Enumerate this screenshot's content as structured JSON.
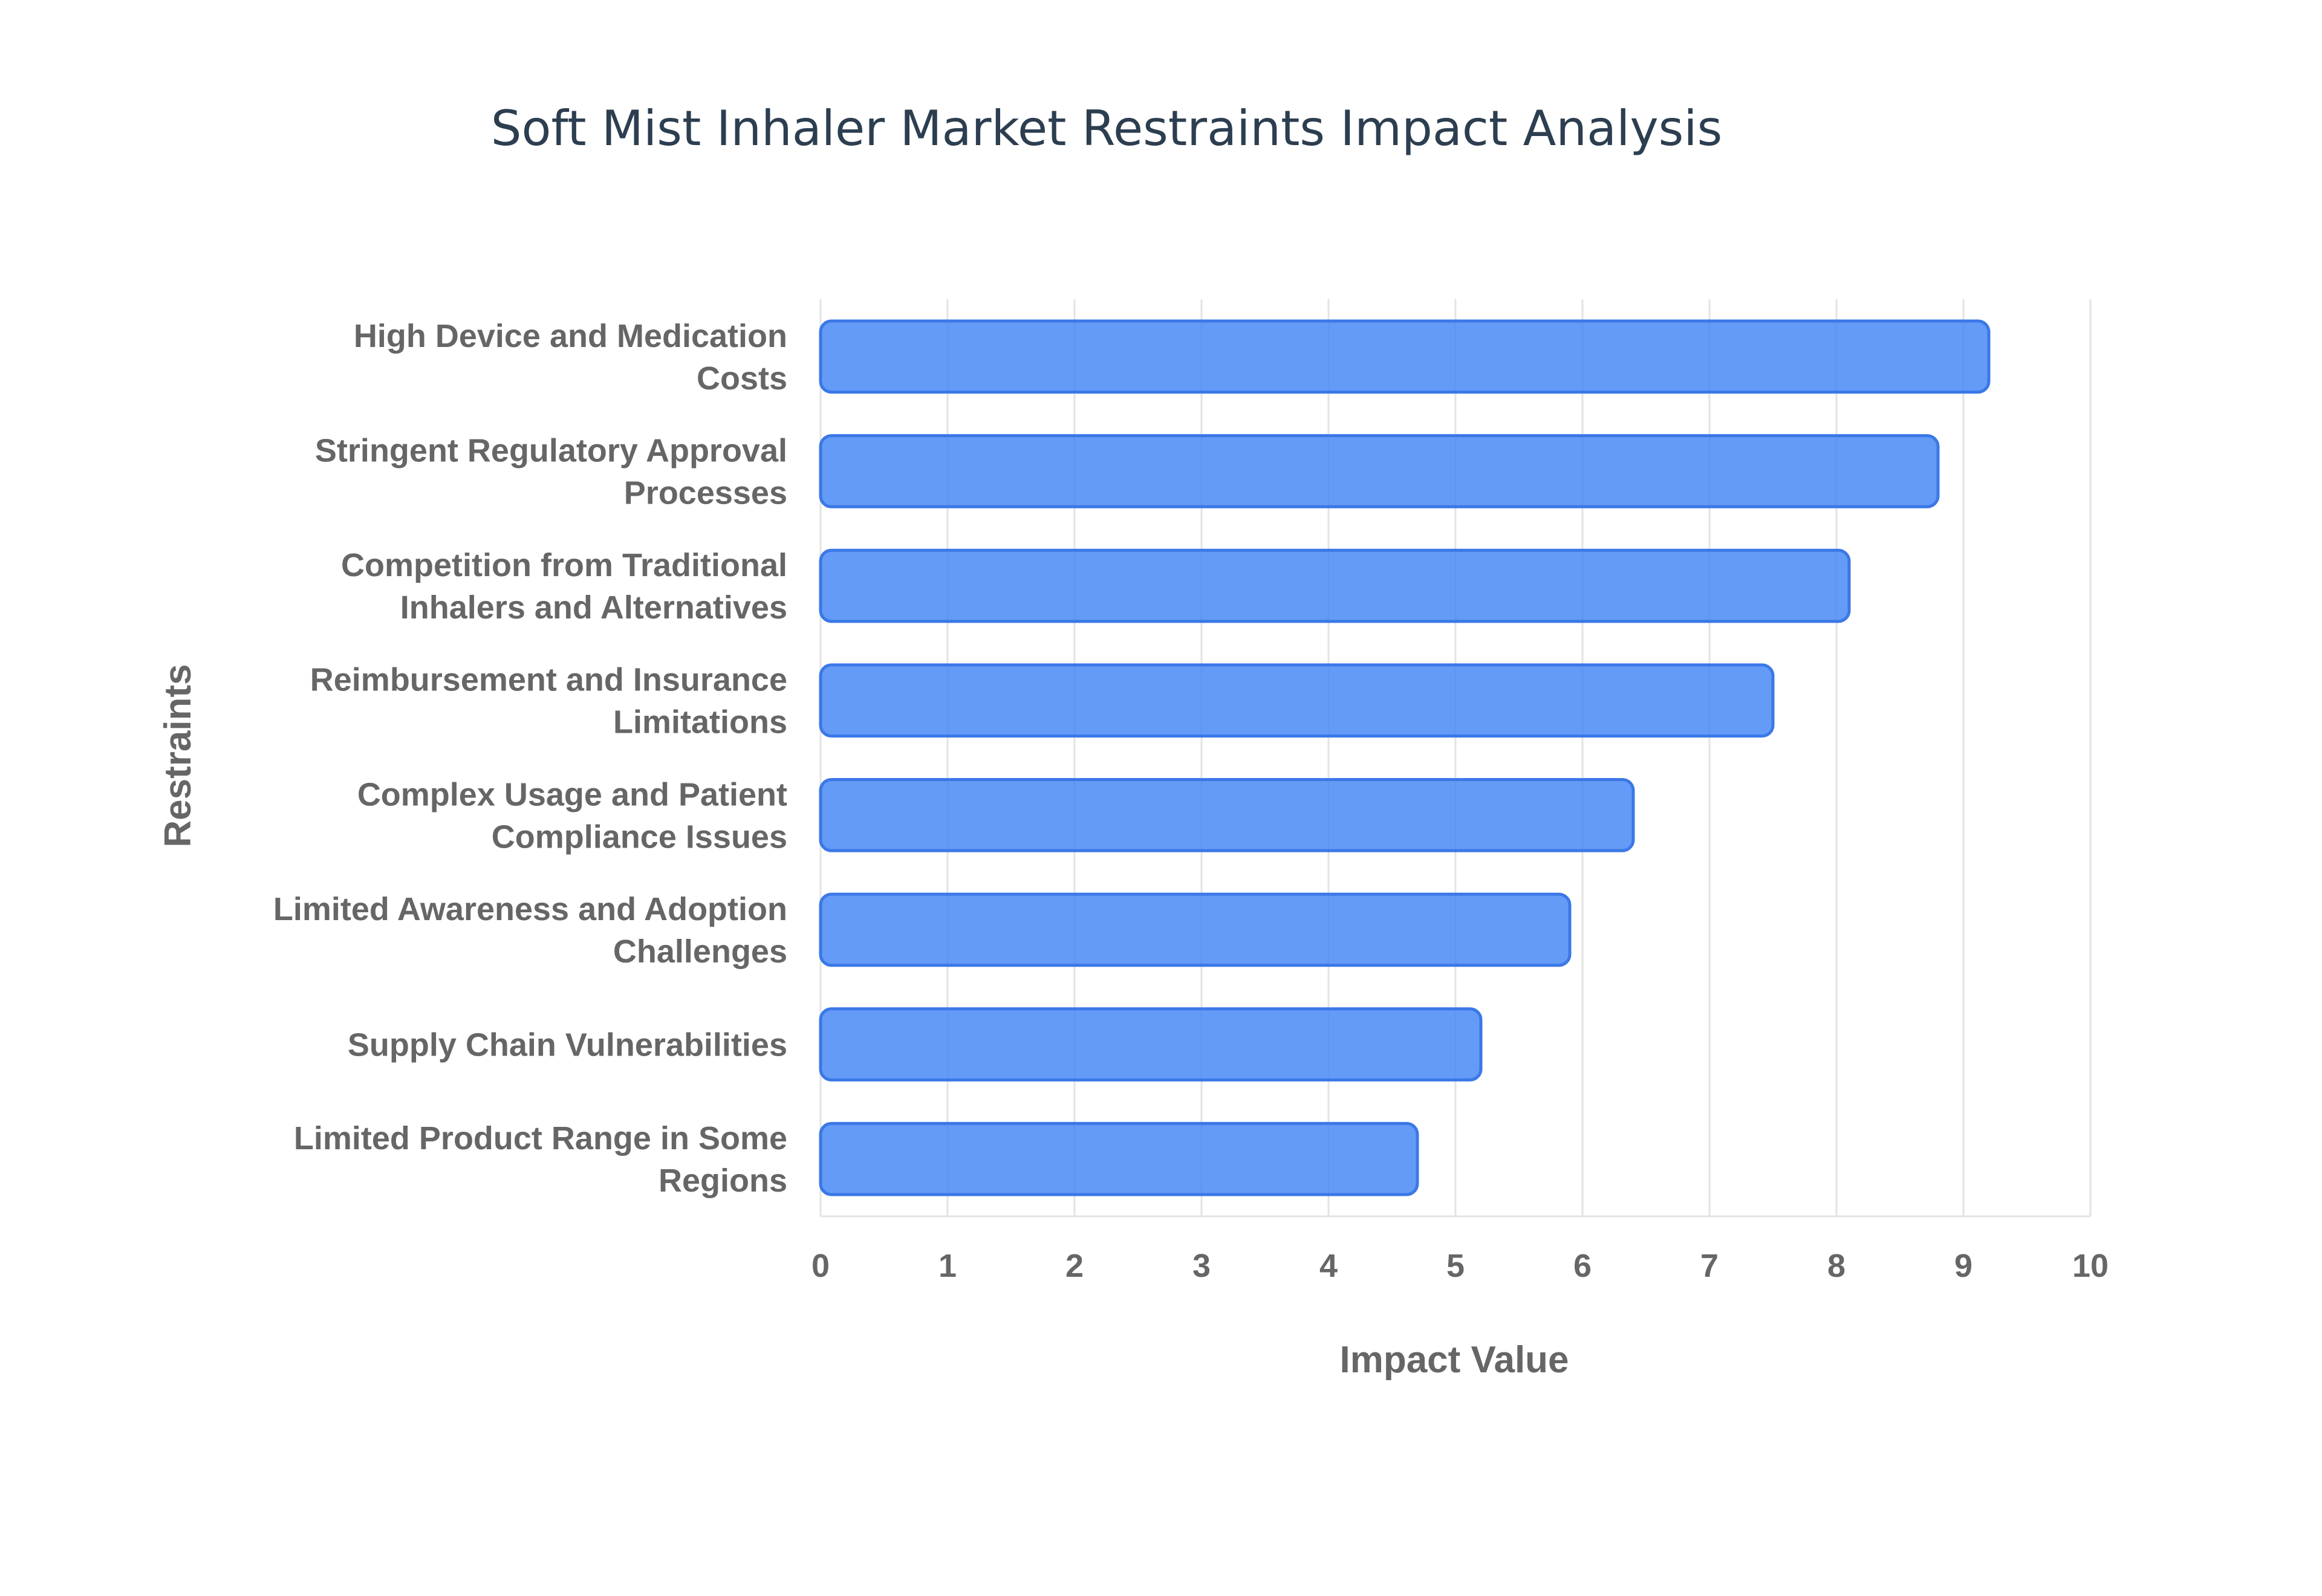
{
  "chart_data": {
    "type": "bar",
    "orientation": "horizontal",
    "title": "Soft Mist Inhaler Market Restraints Impact Analysis",
    "xlabel": "Impact Value",
    "ylabel": "Restraints",
    "xlim": [
      0,
      10
    ],
    "x_ticks": [
      "0",
      "1",
      "2",
      "3",
      "4",
      "5",
      "6",
      "7",
      "8",
      "9",
      "10"
    ],
    "grid": true,
    "legend": "none",
    "categories": [
      [
        "High Device and Medication",
        "Costs"
      ],
      [
        "Stringent Regulatory Approval",
        "Processes"
      ],
      [
        "Competition from Traditional",
        "Inhalers and Alternatives"
      ],
      [
        "Reimbursement and Insurance",
        "Limitations"
      ],
      [
        "Complex Usage and Patient",
        "Compliance Issues"
      ],
      [
        "Limited Awareness and Adoption",
        "Challenges"
      ],
      [
        "Supply Chain Vulnerabilities"
      ],
      [
        "Limited Product Range in Some",
        "Regions"
      ]
    ],
    "values": [
      9.2,
      8.8,
      8.1,
      7.5,
      6.4,
      5.9,
      5.2,
      4.7
    ],
    "colors": {
      "bar_fill": "#4285f4",
      "bar_stroke": "#3b78e7",
      "text": "#666666",
      "title": "#2c3e50",
      "grid": "#e3e3e3"
    }
  }
}
